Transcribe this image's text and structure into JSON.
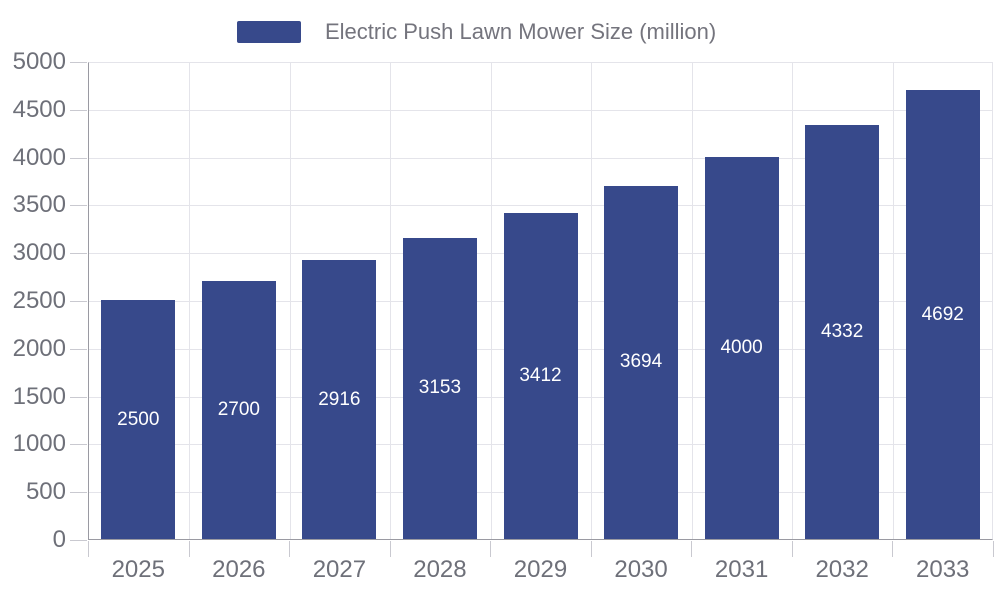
{
  "chart_data": {
    "type": "bar",
    "title": "Electric Push Lawn Mower Size (million)",
    "legend_entries": [
      "Electric Push Lawn Mower Size (million)"
    ],
    "legend_position": "top-center",
    "categories": [
      "2025",
      "2026",
      "2027",
      "2028",
      "2029",
      "2030",
      "2031",
      "2032",
      "2033"
    ],
    "series": [
      {
        "name": "Electric Push Lawn Mower Size (million)",
        "values": [
          2500,
          2700,
          2916,
          3153,
          3412,
          3694,
          4000,
          4332,
          4692
        ]
      }
    ],
    "data_labels": [
      "2500",
      "2700",
      "2916",
      "3153",
      "3412",
      "3694",
      "4000",
      "4332",
      "4692"
    ],
    "xlabel": "",
    "ylabel": "",
    "ylim": [
      0,
      5000
    ],
    "ytick_interval": 500,
    "yticks": [
      0,
      500,
      1000,
      1500,
      2000,
      2500,
      3000,
      3500,
      4000,
      4500,
      5000
    ],
    "ytick_labels": [
      "0",
      "500",
      "1000",
      "1500",
      "2000",
      "2500",
      "3000",
      "3500",
      "4000",
      "4500",
      "5000"
    ],
    "grid": "horizontal-and-vertical",
    "colors": {
      "bar": "#37498b",
      "value_label": "#ffffff",
      "axis_line": "#9a9aa2",
      "tick_line": "#c9c9d0",
      "grid_line": "#e4e4ea",
      "axis_label": "#6e7079",
      "legend_text": "#74747d"
    }
  }
}
